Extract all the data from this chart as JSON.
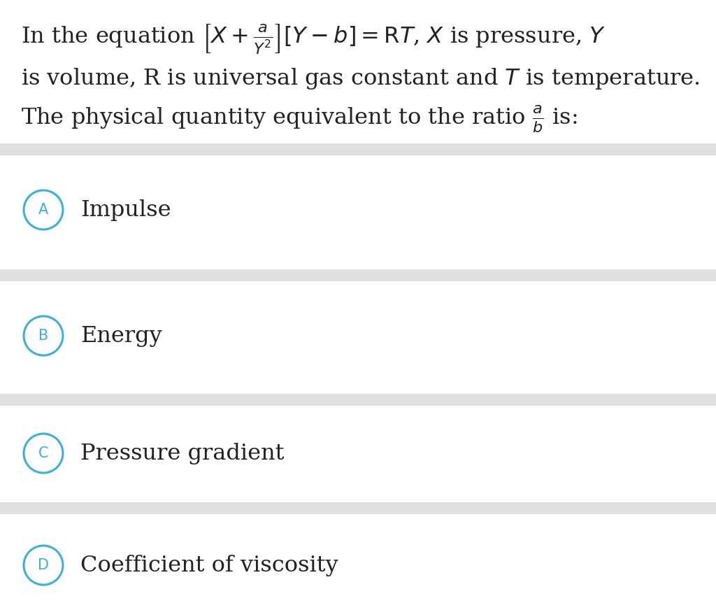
{
  "background_color": "#ffffff",
  "question_lines": [
    "In the equation $\\left[X + \\frac{a}{Y^2}\\right][Y - b] = \\mathrm{R}T$, $X$ is pressure, $Y$",
    "is volume, R is universal gas constant and $T$ is temperature.",
    "The physical quantity equivalent to the ratio $\\frac{a}{b}$ is:"
  ],
  "options": [
    {
      "label": "A",
      "text": "Impulse"
    },
    {
      "label": "B",
      "text": "Energy"
    },
    {
      "label": "C",
      "text": "Pressure gradient"
    },
    {
      "label": "D",
      "text": "Coefficient of viscosity"
    }
  ],
  "circle_color": "#3aafe0",
  "circle_edge_width": 2.0,
  "option_text_color": "#222222",
  "question_text_color": "#222222",
  "question_fontsize": 23,
  "option_fontsize": 23,
  "label_fontsize": 15,
  "separator_band_color": "#e0e0e0",
  "fig_width": 10.24,
  "fig_height": 8.72,
  "dpi": 100
}
